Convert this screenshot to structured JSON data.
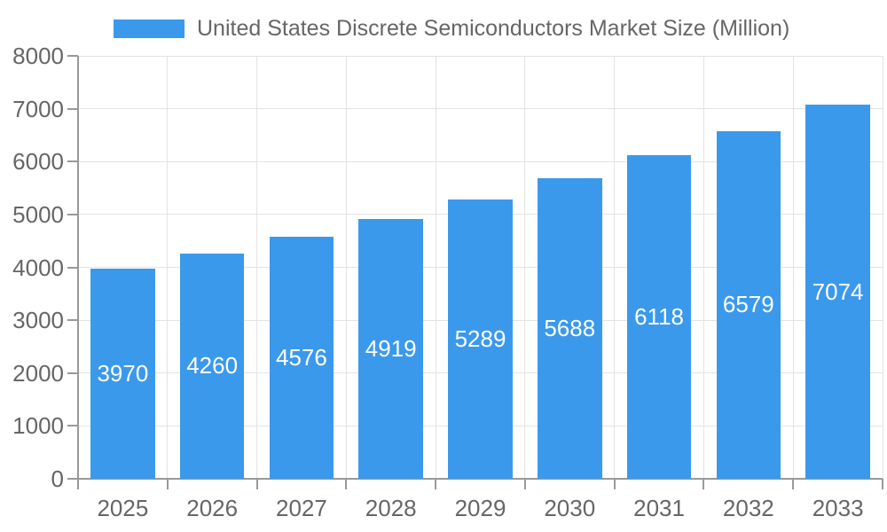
{
  "colors": {
    "bar": "#3B99EC",
    "text": "#666666",
    "grid": "#E3E3E3",
    "axis": "#999999",
    "value_label": "#FFFFFF",
    "background": "#FFFFFF"
  },
  "legend": {
    "label": "United States Discrete Semiconductors Market Size (Million)",
    "position": "top"
  },
  "chart_data": {
    "type": "bar",
    "title": "United States Discrete Semiconductors Market Size (Million)",
    "categories": [
      "2025",
      "2026",
      "2027",
      "2028",
      "2029",
      "2030",
      "2031",
      "2032",
      "2033"
    ],
    "values": [
      3970,
      4260,
      4576,
      4919,
      5289,
      5688,
      6118,
      6579,
      7074
    ],
    "xlabel": "",
    "ylabel": "",
    "ylim": [
      0,
      8000
    ],
    "ytick_step": 1000,
    "yticks": [
      "0",
      "1000",
      "2000",
      "3000",
      "4000",
      "5000",
      "6000",
      "7000",
      "8000"
    ],
    "grid": true,
    "legend_position": "top",
    "value_labels": "inside-center"
  }
}
